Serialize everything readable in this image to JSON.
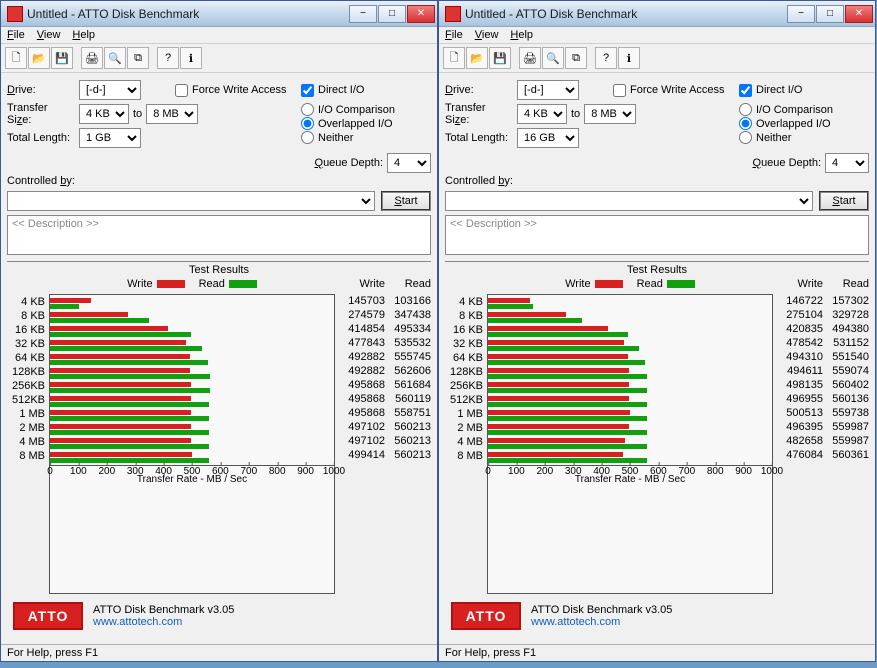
{
  "title": "Untitled - ATTO Disk Benchmark",
  "menu": {
    "file": "File",
    "view": "View",
    "help": "Help"
  },
  "labels": {
    "drive": "Drive:",
    "transfer_size": "Transfer Size:",
    "to": "to",
    "total_length": "Total Length:",
    "force_write": "Force Write Access",
    "direct_io": "Direct I/O",
    "io_comparison": "I/O Comparison",
    "overlapped_io": "Overlapped I/O",
    "neither": "Neither",
    "queue_depth": "Queue Depth:",
    "controlled_by": "Controlled by:",
    "start": "Start",
    "description_hint": "<< Description >>",
    "test_results": "Test Results",
    "write": "Write",
    "read": "Read",
    "xaxis": "Transfer Rate - MB / Sec",
    "version": "ATTO Disk Benchmark v3.05",
    "url": "www.attotech.com",
    "status": "For Help, press F1"
  },
  "chart": {
    "row_labels": [
      "4 KB",
      "8 KB",
      "16 KB",
      "32 KB",
      "64 KB",
      "128KB",
      "256KB",
      "512KB",
      "1 MB",
      "2 MB",
      "4 MB",
      "8 MB"
    ],
    "xticks": [
      0,
      100,
      200,
      300,
      400,
      500,
      600,
      700,
      800,
      900,
      1000
    ],
    "xmax": 1000,
    "colors": {
      "write": "#d92020",
      "read": "#10a010"
    }
  },
  "windows": [
    {
      "drive": "[-d-]",
      "ts_from": "4 KB",
      "ts_to": "8 MB",
      "total_length": "1 GB",
      "force_write": false,
      "direct_io": true,
      "io_mode": "overlapped",
      "queue_depth": "4",
      "rows": [
        {
          "write": 145703,
          "read": 103166,
          "wbar": 146,
          "rbar": 103
        },
        {
          "write": 274579,
          "read": 347438,
          "wbar": 275,
          "rbar": 347
        },
        {
          "write": 414854,
          "read": 495334,
          "wbar": 415,
          "rbar": 495
        },
        {
          "write": 477843,
          "read": 535532,
          "wbar": 478,
          "rbar": 536
        },
        {
          "write": 492882,
          "read": 555745,
          "wbar": 493,
          "rbar": 556
        },
        {
          "write": 492882,
          "read": 562606,
          "wbar": 493,
          "rbar": 563
        },
        {
          "write": 495868,
          "read": 561684,
          "wbar": 496,
          "rbar": 562
        },
        {
          "write": 495868,
          "read": 560119,
          "wbar": 496,
          "rbar": 560
        },
        {
          "write": 495868,
          "read": 558751,
          "wbar": 496,
          "rbar": 559
        },
        {
          "write": 497102,
          "read": 560213,
          "wbar": 497,
          "rbar": 560
        },
        {
          "write": 497102,
          "read": 560213,
          "wbar": 497,
          "rbar": 560
        },
        {
          "write": 499414,
          "read": 560213,
          "wbar": 499,
          "rbar": 560
        }
      ]
    },
    {
      "drive": "[-d-]",
      "ts_from": "4 KB",
      "ts_to": "8 MB",
      "total_length": "16 GB",
      "force_write": false,
      "direct_io": true,
      "io_mode": "overlapped",
      "queue_depth": "4",
      "rows": [
        {
          "write": 146722,
          "read": 157302,
          "wbar": 147,
          "rbar": 157
        },
        {
          "write": 275104,
          "read": 329728,
          "wbar": 275,
          "rbar": 330
        },
        {
          "write": 420835,
          "read": 494380,
          "wbar": 421,
          "rbar": 494
        },
        {
          "write": 478542,
          "read": 531152,
          "wbar": 479,
          "rbar": 531
        },
        {
          "write": 494310,
          "read": 551540,
          "wbar": 494,
          "rbar": 552
        },
        {
          "write": 494611,
          "read": 559074,
          "wbar": 495,
          "rbar": 559
        },
        {
          "write": 498135,
          "read": 560402,
          "wbar": 498,
          "rbar": 560
        },
        {
          "write": 496955,
          "read": 560136,
          "wbar": 497,
          "rbar": 560
        },
        {
          "write": 500513,
          "read": 559738,
          "wbar": 501,
          "rbar": 560
        },
        {
          "write": 496395,
          "read": 559987,
          "wbar": 496,
          "rbar": 560
        },
        {
          "write": 482658,
          "read": 559987,
          "wbar": 483,
          "rbar": 560
        },
        {
          "write": 476084,
          "read": 560361,
          "wbar": 476,
          "rbar": 560
        }
      ]
    }
  ]
}
